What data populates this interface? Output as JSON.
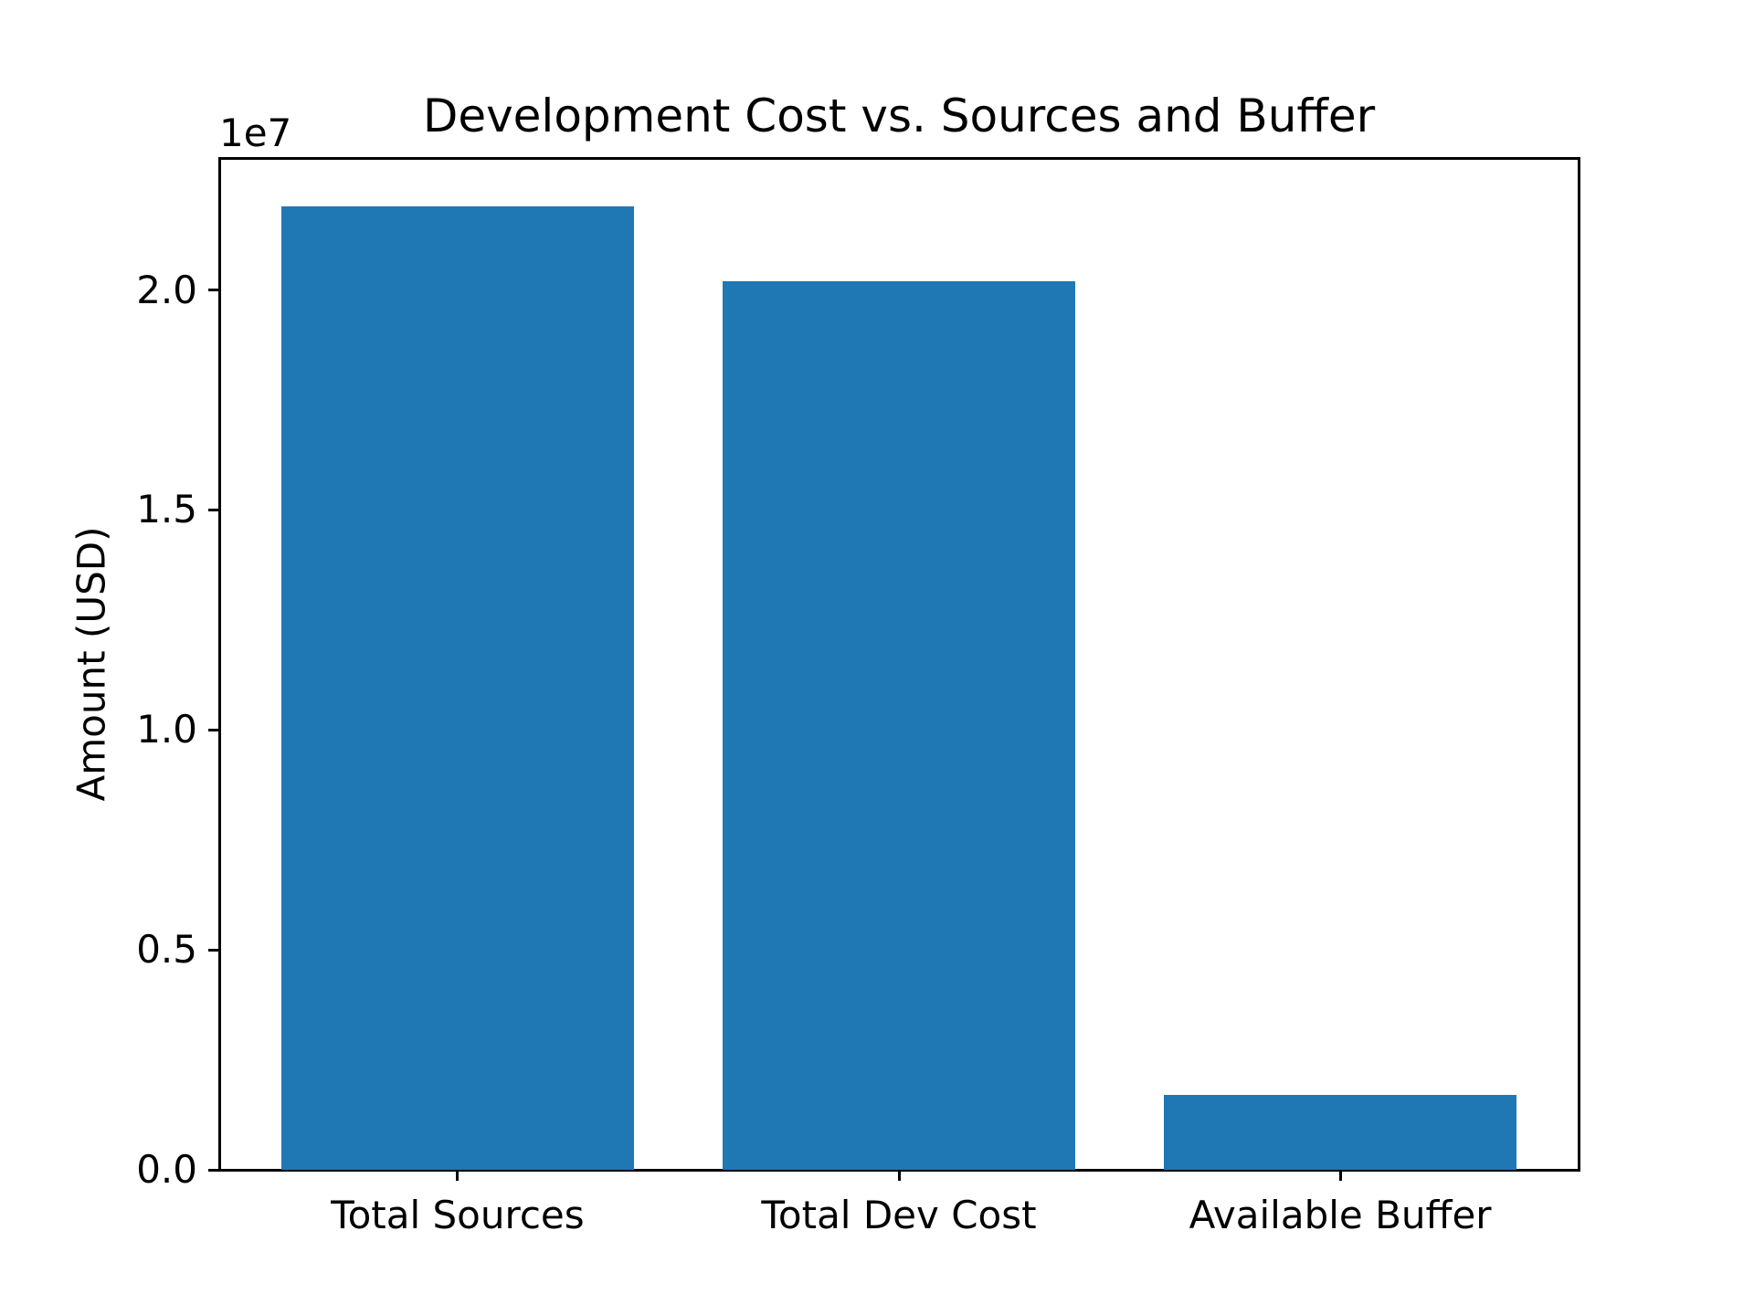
{
  "figure": {
    "title": "Development Cost vs. Sources and Buffer",
    "y_axis_label": "Amount (USD)",
    "y_offset_label": "1e7"
  },
  "chart_data": {
    "type": "bar",
    "title": "Development Cost vs. Sources and Buffer",
    "xlabel": "",
    "ylabel": "Amount (USD)",
    "categories": [
      "Total Sources",
      "Total Dev Cost",
      "Available Buffer"
    ],
    "values": [
      21900000,
      20200000,
      1700000
    ],
    "ylim": [
      0,
      23000000
    ],
    "yticks": {
      "values": [
        0,
        5000000,
        10000000,
        15000000,
        20000000
      ],
      "labels": [
        "0.0",
        "0.5",
        "1.0",
        "1.5",
        "2.0"
      ],
      "offset_label": "1e7"
    },
    "bar_color": "#1f77b4",
    "bar_width_fraction": 0.8,
    "axis_color": "#000000",
    "grid": false,
    "legend": false
  }
}
